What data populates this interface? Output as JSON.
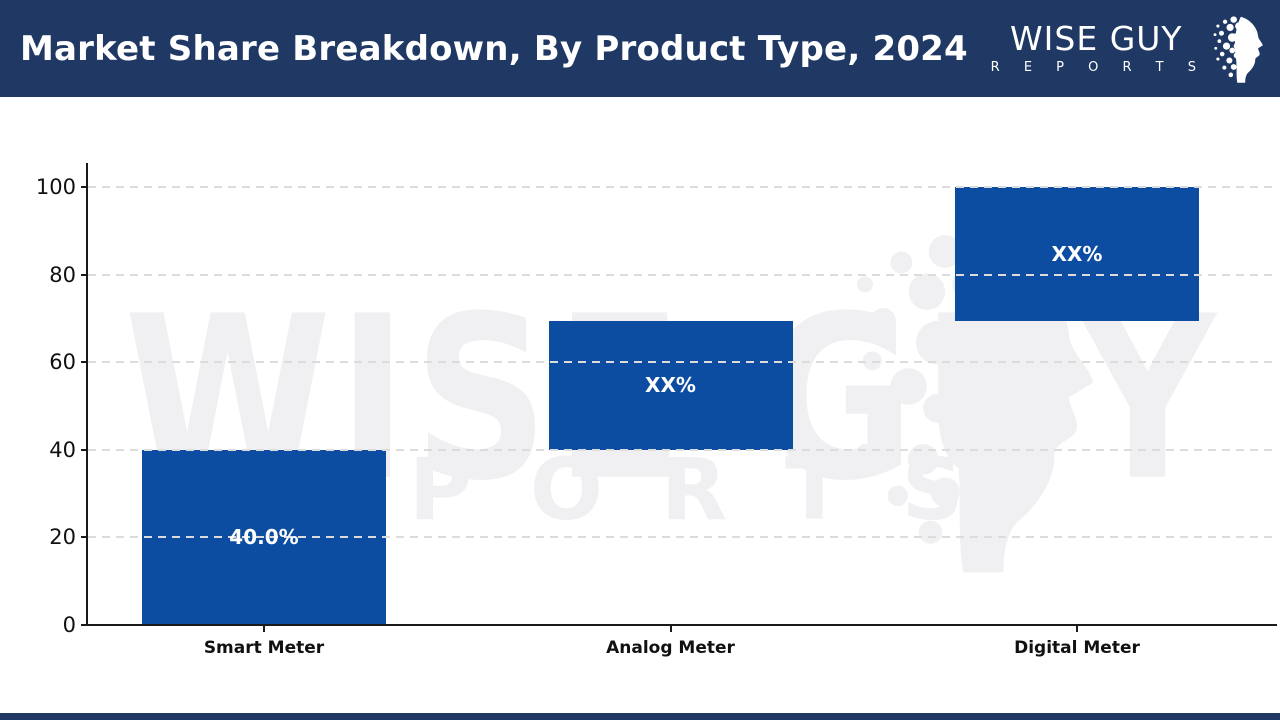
{
  "header": {
    "title": "Market Share Breakdown, By Product Type, 2024",
    "logo": {
      "wordmark": "WISE GUY",
      "reports": "R E P O R T S"
    }
  },
  "watermark": {
    "line1": "WISE GUY",
    "line2": "R E P O R T S"
  },
  "chart_data": {
    "type": "bar",
    "variant": "floating-waterfall",
    "title": "Market Share Breakdown, By Product Type, 2024",
    "categories": [
      "Smart Meter",
      "Analog Meter",
      "Digital Meter"
    ],
    "bars": [
      {
        "category": "Smart Meter",
        "start": 0,
        "end": 40,
        "label": "40.0%"
      },
      {
        "category": "Analog Meter",
        "start": 40,
        "end": 69.5,
        "label": "XX%"
      },
      {
        "category": "Digital Meter",
        "start": 69.5,
        "end": 100,
        "label": "XX%"
      }
    ],
    "yticks": [
      0,
      20,
      40,
      60,
      80,
      100
    ],
    "ylim": [
      0,
      105.5
    ],
    "xlabel": "",
    "ylabel": "",
    "grid": "horizontal-dashed",
    "legend": "none"
  },
  "colors": {
    "header_bg": "#1f3864",
    "footer_bg": "#1f3864",
    "bar": "#0d4da1",
    "grid": "#dcdcdc",
    "axis": "#1a1a1a",
    "watermark": "#f0f0f2",
    "title_text": "#ffffff",
    "bar_label_text": "#ffffff"
  }
}
